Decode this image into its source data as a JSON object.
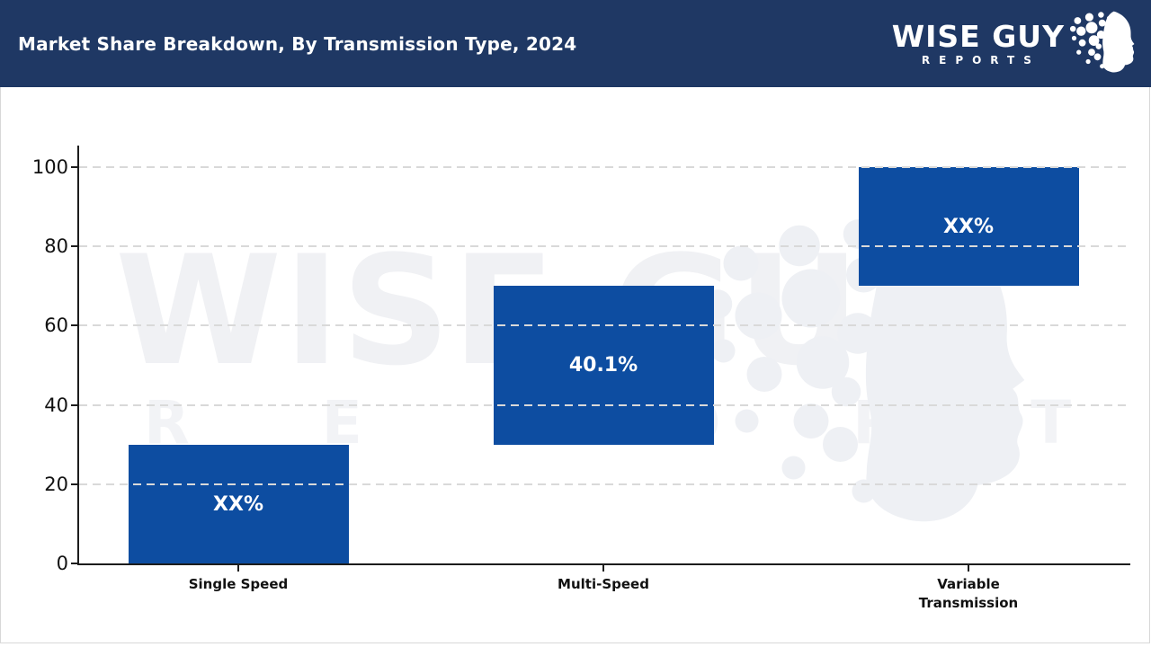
{
  "header": {
    "title": "Market Share Breakdown, By Transmission Type, 2024",
    "logo_line1": "WISE GUY",
    "logo_line2": "REPORTS",
    "bg_color": "#1f3864"
  },
  "watermark": {
    "line1": "WISE GUY",
    "line2": "R E P O R T S"
  },
  "chart_data": {
    "type": "bar",
    "subtype": "waterfall",
    "title": "Market Share Breakdown, By Transmission Type, 2024",
    "categories": [
      "Single Speed",
      "Multi-Speed",
      "Variable Transmission"
    ],
    "bars": [
      {
        "category": "Single Speed",
        "base": 0,
        "top": 29.9,
        "value_label": "XX%"
      },
      {
        "category": "Multi-Speed",
        "base": 29.9,
        "top": 70,
        "value_label": "40.1%"
      },
      {
        "category": "Variable Transmission",
        "base": 70,
        "top": 99.9,
        "value_label": "XX%"
      }
    ],
    "bar_color": "#0d4da1",
    "yticks": [
      0,
      20,
      40,
      60,
      80,
      100
    ],
    "ylim": [
      0,
      106
    ],
    "grid": "dashed horizontal, drawn over bars",
    "legend": "none",
    "xlabel": "",
    "ylabel": ""
  }
}
